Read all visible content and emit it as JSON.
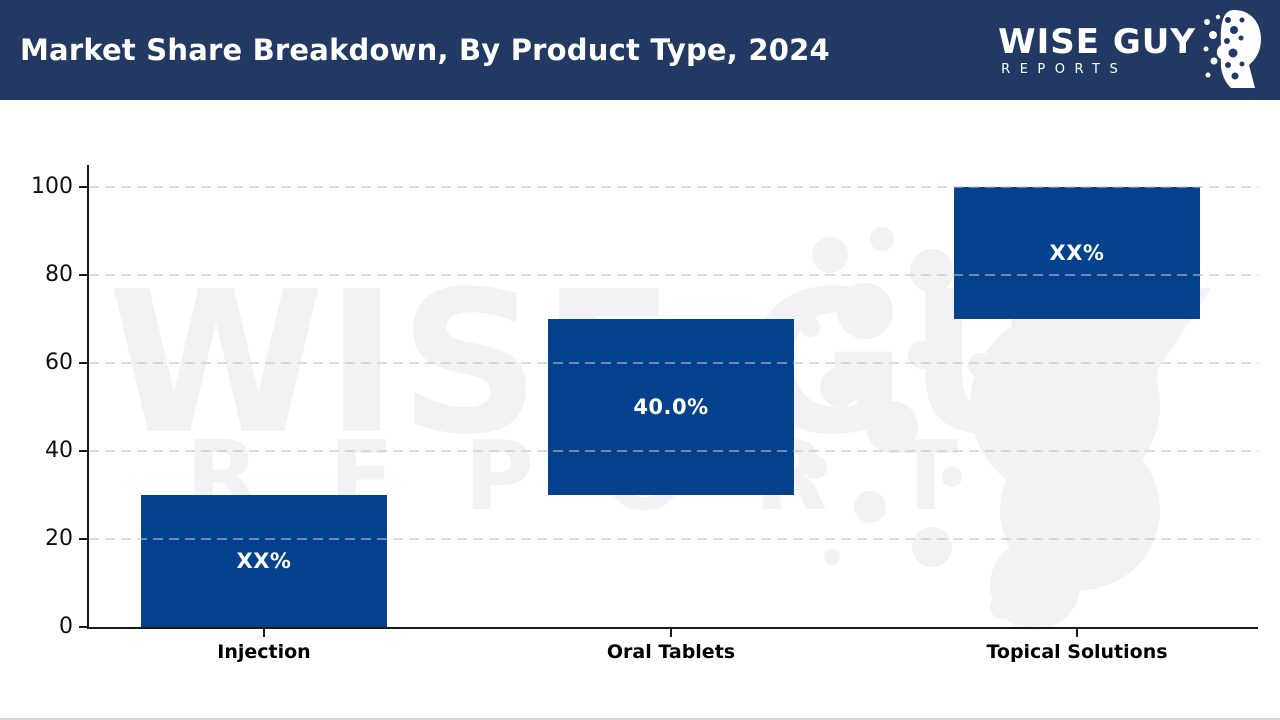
{
  "header": {
    "title": "Market Share Breakdown, By Product Type, 2024",
    "bg_color": "#223a63",
    "logo": {
      "wordmark": "WISE GUY",
      "subtext": "REPORTS"
    }
  },
  "watermark": {
    "wordmark": "WISE GUY",
    "subtext": "REPORTS"
  },
  "chart_data": {
    "type": "bar",
    "subtype": "floating-segment percentage bars (waterfall / stacked breakdown)",
    "title": "Market Share Breakdown, By Product Type, 2024",
    "categories": [
      "Injection",
      "Oral Tablets",
      "Topical Solutions"
    ],
    "segments": [
      {
        "category": "Injection",
        "start": 0,
        "end": 30,
        "label": "XX%"
      },
      {
        "category": "Oral Tablets",
        "start": 30,
        "end": 70,
        "label": "40.0%"
      },
      {
        "category": "Topical Solutions",
        "start": 70,
        "end": 100,
        "label": "XX%"
      }
    ],
    "yticks": [
      0,
      20,
      40,
      60,
      80,
      100
    ],
    "ylim": [
      0,
      105
    ],
    "xlabel": "",
    "ylabel": "",
    "grid": "horizontal-dashed",
    "legend": "none",
    "bar_color": "#04428e",
    "bar_label_color": "#ffffff",
    "axis_color": "#1a1a1a",
    "gridline_color": "#d9d9d9"
  }
}
